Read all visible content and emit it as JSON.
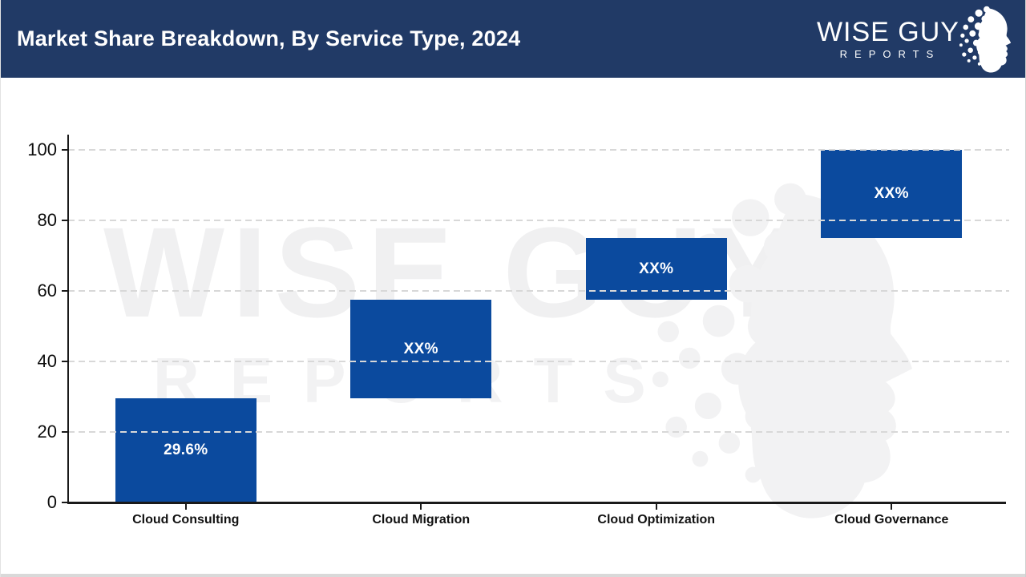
{
  "header": {
    "title": "Market Share Breakdown, By Service Type, 2024",
    "bg_color": "#213a66",
    "logo": {
      "line1": "WISE GUY",
      "line2": "REPORTS"
    }
  },
  "watermark": {
    "line1": "WISE GUY",
    "line2": "REPORTS"
  },
  "chart_data": {
    "type": "bar",
    "subtype": "waterfall",
    "title": "Market Share Breakdown, By Service Type, 2024",
    "categories": [
      "Cloud Consulting",
      "Cloud Migration",
      "Cloud Optimization",
      "Cloud Governance"
    ],
    "bars": [
      {
        "category": "Cloud Consulting",
        "start": 0,
        "end": 29.6,
        "label": "29.6%"
      },
      {
        "category": "Cloud Migration",
        "start": 29.6,
        "end": 57.5,
        "label": "XX%"
      },
      {
        "category": "Cloud Optimization",
        "start": 57.5,
        "end": 75,
        "label": "XX%"
      },
      {
        "category": "Cloud Governance",
        "start": 75,
        "end": 100,
        "label": "XX%"
      }
    ],
    "y_ticks": [
      0,
      20,
      40,
      60,
      80,
      100
    ],
    "ylim": [
      0,
      105
    ],
    "xlabel": "",
    "ylabel": "",
    "grid": "dashed-horizontal",
    "legend": "none",
    "colors": {
      "bar": "#0b4a9e",
      "bar_value_label": "#ffffff",
      "grid": "#d8d8d8",
      "axis": "#1a1a1a",
      "watermark": "#f1f1f2"
    }
  }
}
